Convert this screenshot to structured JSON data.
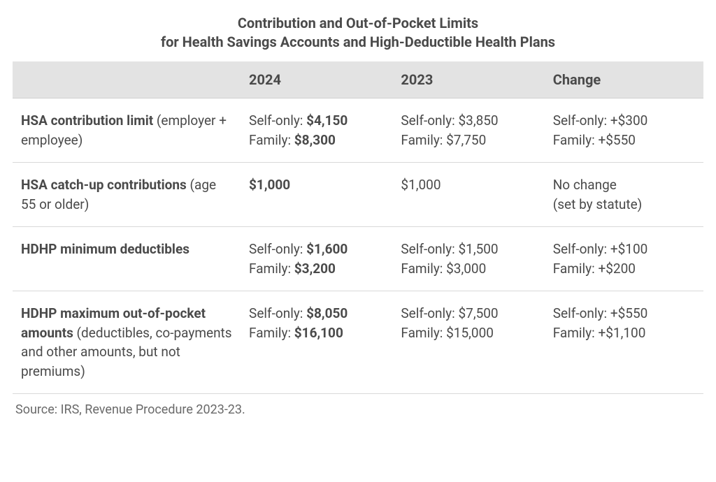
{
  "title_line1": "Contribution and Out-of-Pocket Limits",
  "title_line2": "for Health Savings Accounts and High-Deductible Health Plans",
  "columns": {
    "blank": "",
    "y2024": "2024",
    "y2023": "2023",
    "change": "Change"
  },
  "rows": [
    {
      "label_bold": "HSA contribution limit",
      "label_rest": " (employer + employee)",
      "y2024": {
        "l1_pre": "Self-only: ",
        "l1_val": "$4,150",
        "l2_pre": "Family: ",
        "l2_val": "$8,300"
      },
      "y2023": {
        "l1": "Self-only: $3,850",
        "l2": "Family: $7,750"
      },
      "change": {
        "l1": "Self-only: +$300",
        "l2": "Family: +$550"
      }
    },
    {
      "label_bold": "HSA catch-up contributions",
      "label_rest": " (age 55 or older)",
      "y2024": {
        "l1_pre": "",
        "l1_val": "$1,000",
        "l2_pre": "",
        "l2_val": ""
      },
      "y2023": {
        "l1": "$1,000",
        "l2": ""
      },
      "change": {
        "l1": "No change",
        "l2": "(set by statute)"
      }
    },
    {
      "label_bold": "HDHP minimum deductibles",
      "label_rest": "",
      "y2024": {
        "l1_pre": "Self-only: ",
        "l1_val": "$1,600",
        "l2_pre": "Family: ",
        "l2_val": "$3,200"
      },
      "y2023": {
        "l1": "Self-only: $1,500",
        "l2": "Family: $3,000"
      },
      "change": {
        "l1": "Self-only: +$100",
        "l2": "Family: +$200"
      }
    },
    {
      "label_bold": "HDHP maximum out-of-pocket amounts",
      "label_rest": " (deductibles, co-payments and other amounts, but not premiums)",
      "y2024": {
        "l1_pre": "Self-only: ",
        "l1_val": "$8,050",
        "l2_pre": "Family: ",
        "l2_val": "$16,100"
      },
      "y2023": {
        "l1": "Self-only: $7,500",
        "l2": "Family: $15,000"
      },
      "change": {
        "l1": "Self-only: +$550",
        "l2": "Family: +$1,100"
      }
    }
  ],
  "source": "Source: IRS, Revenue Procedure 2023-23."
}
